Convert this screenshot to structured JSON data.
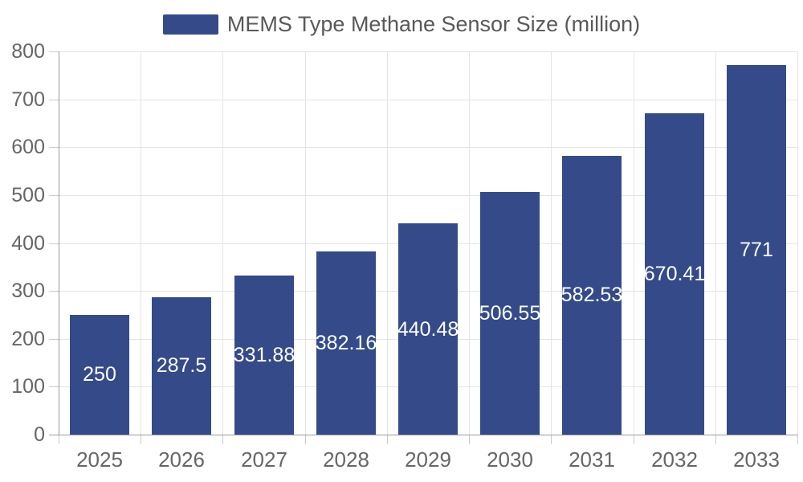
{
  "legend": {
    "label": "MEMS Type Methane Sensor Size (million)"
  },
  "chart_data": {
    "type": "bar",
    "title": "MEMS Type Methane Sensor Size (million)",
    "categories": [
      "2025",
      "2026",
      "2027",
      "2028",
      "2029",
      "2030",
      "2031",
      "2032",
      "2033"
    ],
    "values": [
      250,
      287.5,
      331.88,
      382.16,
      440.48,
      506.55,
      582.53,
      670.41,
      771
    ],
    "value_labels": [
      "250",
      "287.5",
      "331.88",
      "382.16",
      "440.48",
      "506.55",
      "582.53",
      "670.41",
      "771"
    ],
    "xlabel": "",
    "ylabel": "",
    "ylim": [
      0,
      800
    ],
    "y_ticks": [
      0,
      100,
      200,
      300,
      400,
      500,
      600,
      700,
      800
    ],
    "grid": true,
    "legend_position": "top-center",
    "colors": {
      "bar": "#354A88",
      "grid": "#E4E4E4",
      "axis_line": "#9B9B9B",
      "boundary_tick": "#C9C9C9",
      "tick_label": "#666666",
      "legend_text": "#595959",
      "value_label": "#FFFFFF",
      "background": "#FFFFFF"
    }
  }
}
